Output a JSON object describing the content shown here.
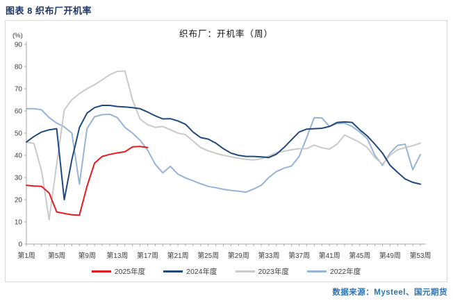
{
  "page_title": "图表 8 织布厂开机率",
  "source": "数据来源：Mysteel、国元期货",
  "colors": {
    "title_text": "#1f3864",
    "source_text": "#2e74b5",
    "axis": "#a6a6a6",
    "axis_text": "#404040",
    "series_2025": "#e8191c",
    "series_2024": "#1f497d",
    "series_2023": "#c9c9c9",
    "series_2022": "#95b3d7"
  },
  "chart_data": {
    "type": "line",
    "title": "织布厂：开机率（周）",
    "unit_label": "(%)",
    "xlabel": "",
    "ylabel": "",
    "ylim": [
      0,
      90
    ],
    "y_ticks": [
      0,
      10,
      20,
      30,
      40,
      50,
      60,
      70,
      80,
      90
    ],
    "x_weeks": 53,
    "x_tick_step": 4,
    "x_tick_labels": [
      "第1周",
      "第5周",
      "第9周",
      "第13周",
      "第17周",
      "第21周",
      "第25周",
      "第29周",
      "第33周",
      "第37周",
      "第41周",
      "第45周",
      "第49周",
      "第53周"
    ],
    "grid": false,
    "legend_position": "bottom",
    "series": [
      {
        "name": "2025年度",
        "color": "#e8191c",
        "start_week": 1,
        "values": [
          26.5,
          26.2,
          26,
          23,
          14.5,
          13.8,
          13.2,
          13,
          26,
          36.5,
          39.5,
          40.4,
          41.1,
          41.6,
          43.8,
          44,
          43.5
        ]
      },
      {
        "name": "2024年度",
        "color": "#1f497d",
        "start_week": 1,
        "values": [
          46,
          48.5,
          50.5,
          51.5,
          52,
          20,
          38,
          52.5,
          59,
          61.5,
          62.5,
          62.5,
          62,
          61.8,
          61.5,
          61,
          59.5,
          57.8,
          56.4,
          56.5,
          55.5,
          54,
          50.5,
          48,
          47.3,
          45.5,
          43,
          41,
          40,
          39.5,
          39.5,
          39.3,
          39,
          40.5,
          43.5,
          47,
          50.5,
          51.8,
          52,
          52.2,
          53,
          54.8,
          55.1,
          54.8,
          51.5,
          48.7,
          45,
          41,
          35.5,
          32.3,
          29.3,
          27.8,
          27
        ]
      },
      {
        "name": "2023年度",
        "color": "#c9c9c9",
        "start_week": 1,
        "values": [
          46,
          45.3,
          33,
          11,
          36,
          60.5,
          65,
          67.8,
          70,
          71.8,
          74,
          76.3,
          77.8,
          78,
          65,
          56.3,
          53.8,
          52.6,
          53,
          51.5,
          50,
          49.3,
          46.4,
          43.5,
          42,
          40.9,
          40,
          39.3,
          38.7,
          38.2,
          37.9,
          38.5,
          39.7,
          41.2,
          41.8,
          42.5,
          43,
          43,
          44.6,
          43.4,
          42.8,
          45,
          49.2,
          47.5,
          45.8,
          43.5,
          39,
          36,
          40,
          42.5,
          43.5,
          44.3,
          45.5
        ]
      },
      {
        "name": "2022年度",
        "color": "#95b3d7",
        "start_week": 1,
        "values": [
          61,
          61,
          60.5,
          57,
          54.5,
          52.8,
          50,
          27,
          52,
          57.4,
          58.3,
          58.5,
          57,
          52.6,
          50,
          46.8,
          42.3,
          36,
          32.1,
          35,
          31.5,
          29.8,
          28.5,
          27.2,
          26,
          25.4,
          24.7,
          24.2,
          23.8,
          23.4,
          24.8,
          26.5,
          30,
          32.7,
          34.2,
          35.2,
          39.5,
          48,
          57,
          56.8,
          53,
          54.3,
          54.5,
          53,
          50.5,
          47.5,
          40,
          35.5,
          41,
          44.5,
          45,
          33.5,
          40.3
        ]
      }
    ]
  }
}
